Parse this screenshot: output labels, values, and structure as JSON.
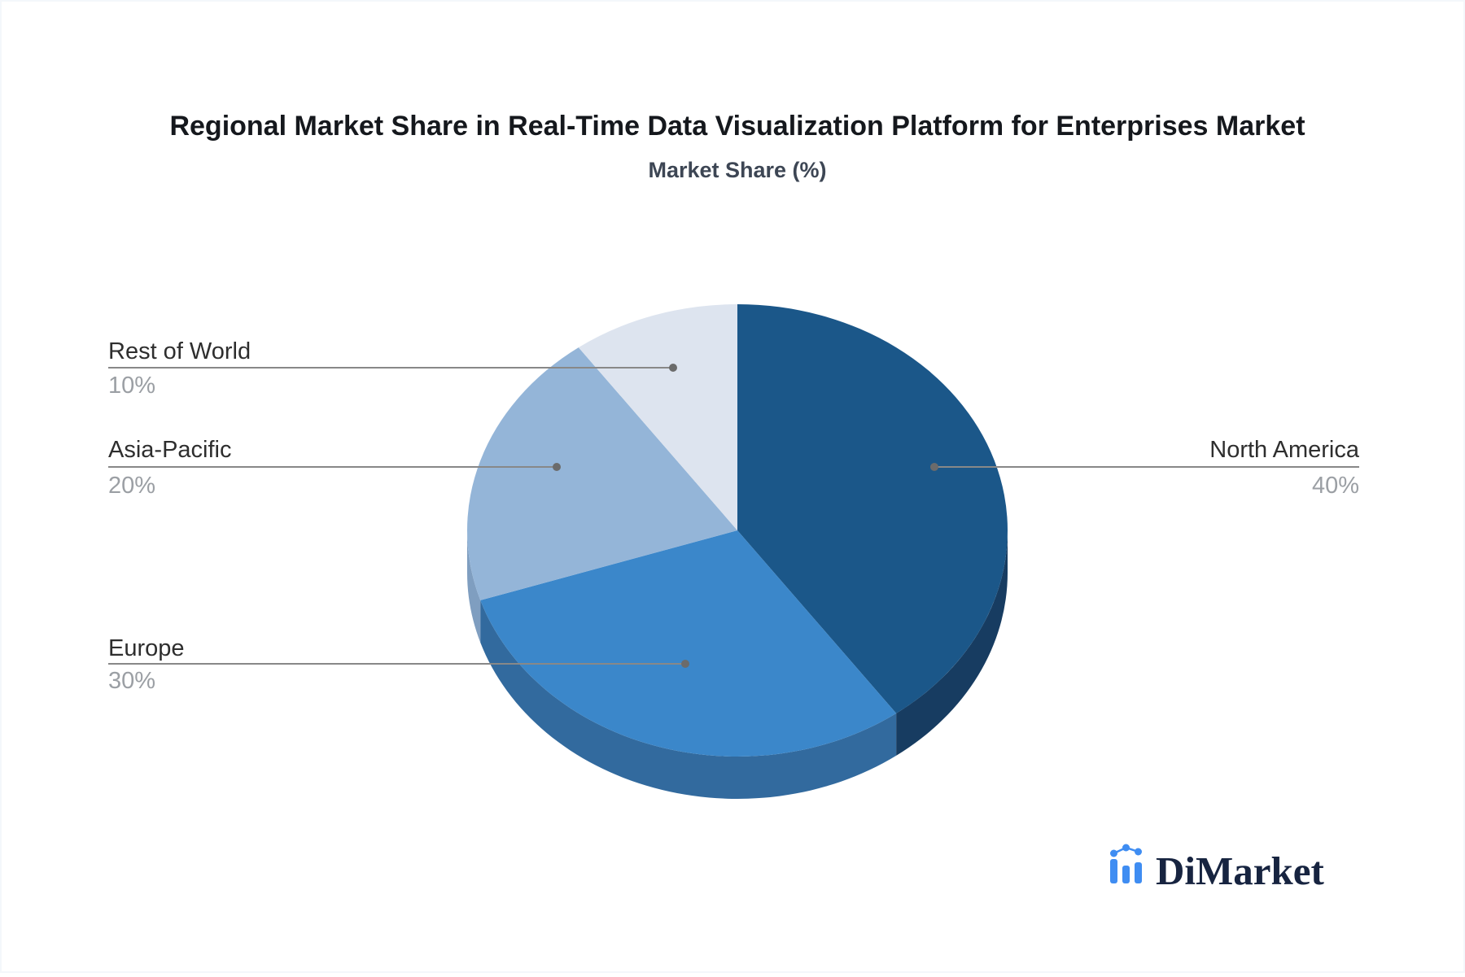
{
  "header": {
    "title": "Regional Market Share in Real-Time Data Visualization Platform for Enterprises Market",
    "subtitle": "Market Share (%)"
  },
  "chart_data": {
    "type": "pie",
    "effect": "3d",
    "title": "Regional Market Share in Real-Time Data Visualization Platform for Enterprises Market",
    "value_label": "Market Share (%)",
    "unit": "%",
    "start_angle_deg": 90,
    "direction": "clockwise",
    "legend": "none",
    "background": "#ffffff",
    "slices": [
      {
        "label": "North America",
        "value": 40,
        "display": "40%",
        "color": "#1b5789",
        "side_color": "#173c61",
        "label_side": "right"
      },
      {
        "label": "Europe",
        "value": 30,
        "display": "30%",
        "color": "#3b87ca",
        "side_color": "#326a9e",
        "label_side": "left"
      },
      {
        "label": "Asia-Pacific",
        "value": 20,
        "display": "20%",
        "color": "#94b5d8",
        "side_color": "#7f9ec0",
        "label_side": "left"
      },
      {
        "label": "Rest of World",
        "value": 10,
        "display": "10%",
        "color": "#dde4ef",
        "side_color": "#c9d3e2",
        "label_side": "left"
      }
    ],
    "leader_line_color": "#888888",
    "leader_dot_color": "#6b6b6b",
    "label_text_color": "#2e2e2e",
    "value_text_color": "#9b9fa4"
  },
  "branding": {
    "logo_text": "DiMarket",
    "logo_icon": "bar-chart-icon",
    "logo_icon_color": "#3f8df2",
    "logo_text_color": "#172440"
  }
}
